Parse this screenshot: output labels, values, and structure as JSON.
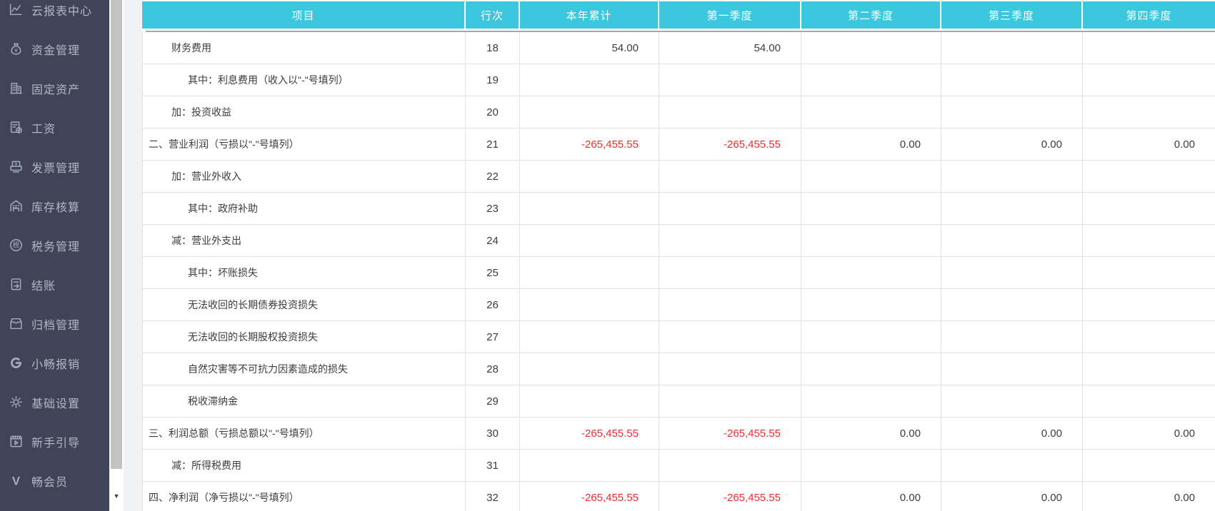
{
  "colors": {
    "accent_header": "#3bc7de",
    "negative_value": "#f32b2b",
    "sidebar_bg": "#3f4458"
  },
  "sidebar": {
    "items": [
      {
        "key": "cloud-report-center",
        "label": "云报表中心",
        "icon": "line-chart-icon"
      },
      {
        "key": "fund-management",
        "label": "资金管理",
        "icon": "money-bag-icon"
      },
      {
        "key": "fixed-assets",
        "label": "固定资产",
        "icon": "building-icon"
      },
      {
        "key": "payroll",
        "label": "工资",
        "icon": "calculator-icon"
      },
      {
        "key": "invoice-management",
        "label": "发票管理",
        "icon": "invoice-icon"
      },
      {
        "key": "inventory-accounting",
        "label": "库存核算",
        "icon": "warehouse-icon"
      },
      {
        "key": "tax-management",
        "label": "税务管理",
        "icon": "tax-coin-icon"
      },
      {
        "key": "closing",
        "label": "结账",
        "icon": "closing-book-icon"
      },
      {
        "key": "archive-management",
        "label": "归档管理",
        "icon": "archive-icon"
      },
      {
        "key": "xiaochang-reimburse",
        "label": "小畅报销",
        "icon": "xiaochang-logo-icon"
      },
      {
        "key": "basic-settings",
        "label": "基础设置",
        "icon": "gear-icon"
      },
      {
        "key": "newbie-guide",
        "label": "新手引导",
        "icon": "video-guide-icon"
      },
      {
        "key": "chang-member",
        "label": "畅会员",
        "icon": "vip-v-icon"
      }
    ]
  },
  "scrollbar": {
    "down_arrow": "▼"
  },
  "report": {
    "columns": [
      {
        "key": "item",
        "label": "项目"
      },
      {
        "key": "line",
        "label": "行次"
      },
      {
        "key": "ytd",
        "label": "本年累计"
      },
      {
        "key": "q1",
        "label": "第一季度"
      },
      {
        "key": "q2",
        "label": "第二季度"
      },
      {
        "key": "q3",
        "label": "第三季度"
      },
      {
        "key": "q4",
        "label": "第四季度"
      }
    ],
    "rows": [
      {
        "item": "财务费用",
        "indent": 1,
        "line": "18",
        "ytd": "54.00",
        "q1": "54.00",
        "q2": "",
        "q3": "",
        "q4": ""
      },
      {
        "item": "其中：利息费用（收入以\"-\"号填列）",
        "indent": 2,
        "line": "19",
        "ytd": "",
        "q1": "",
        "q2": "",
        "q3": "",
        "q4": ""
      },
      {
        "item": "加：投资收益",
        "indent": 1,
        "line": "20",
        "ytd": "",
        "q1": "",
        "q2": "",
        "q3": "",
        "q4": ""
      },
      {
        "item": "二、营业利润（亏损以\"-\"号填列）",
        "indent": 0,
        "line": "21",
        "ytd": "-265,455.55",
        "q1": "-265,455.55",
        "q2": "0.00",
        "q3": "0.00",
        "q4": "0.00"
      },
      {
        "item": "加：营业外收入",
        "indent": 1,
        "line": "22",
        "ytd": "",
        "q1": "",
        "q2": "",
        "q3": "",
        "q4": ""
      },
      {
        "item": "其中：政府补助",
        "indent": 2,
        "line": "23",
        "ytd": "",
        "q1": "",
        "q2": "",
        "q3": "",
        "q4": ""
      },
      {
        "item": "减：营业外支出",
        "indent": 1,
        "line": "24",
        "ytd": "",
        "q1": "",
        "q2": "",
        "q3": "",
        "q4": ""
      },
      {
        "item": "其中：坏账损失",
        "indent": 2,
        "line": "25",
        "ytd": "",
        "q1": "",
        "q2": "",
        "q3": "",
        "q4": ""
      },
      {
        "item": "无法收回的长期债券投资损失",
        "indent": 2,
        "line": "26",
        "ytd": "",
        "q1": "",
        "q2": "",
        "q3": "",
        "q4": ""
      },
      {
        "item": "无法收回的长期股权投资损失",
        "indent": 2,
        "line": "27",
        "ytd": "",
        "q1": "",
        "q2": "",
        "q3": "",
        "q4": ""
      },
      {
        "item": "自然灾害等不可抗力因素造成的损失",
        "indent": 2,
        "line": "28",
        "ytd": "",
        "q1": "",
        "q2": "",
        "q3": "",
        "q4": ""
      },
      {
        "item": "税收滞纳金",
        "indent": 2,
        "line": "29",
        "ytd": "",
        "q1": "",
        "q2": "",
        "q3": "",
        "q4": ""
      },
      {
        "item": "三、利润总额（亏损总额以\"-\"号填列）",
        "indent": 0,
        "line": "30",
        "ytd": "-265,455.55",
        "q1": "-265,455.55",
        "q2": "0.00",
        "q3": "0.00",
        "q4": "0.00"
      },
      {
        "item": "减：所得税费用",
        "indent": 1,
        "line": "31",
        "ytd": "",
        "q1": "",
        "q2": "",
        "q3": "",
        "q4": ""
      },
      {
        "item": "四、净利润（净亏损以\"-\"号填列）",
        "indent": 0,
        "line": "32",
        "ytd": "-265,455.55",
        "q1": "-265,455.55",
        "q2": "0.00",
        "q3": "0.00",
        "q4": "0.00"
      }
    ]
  }
}
